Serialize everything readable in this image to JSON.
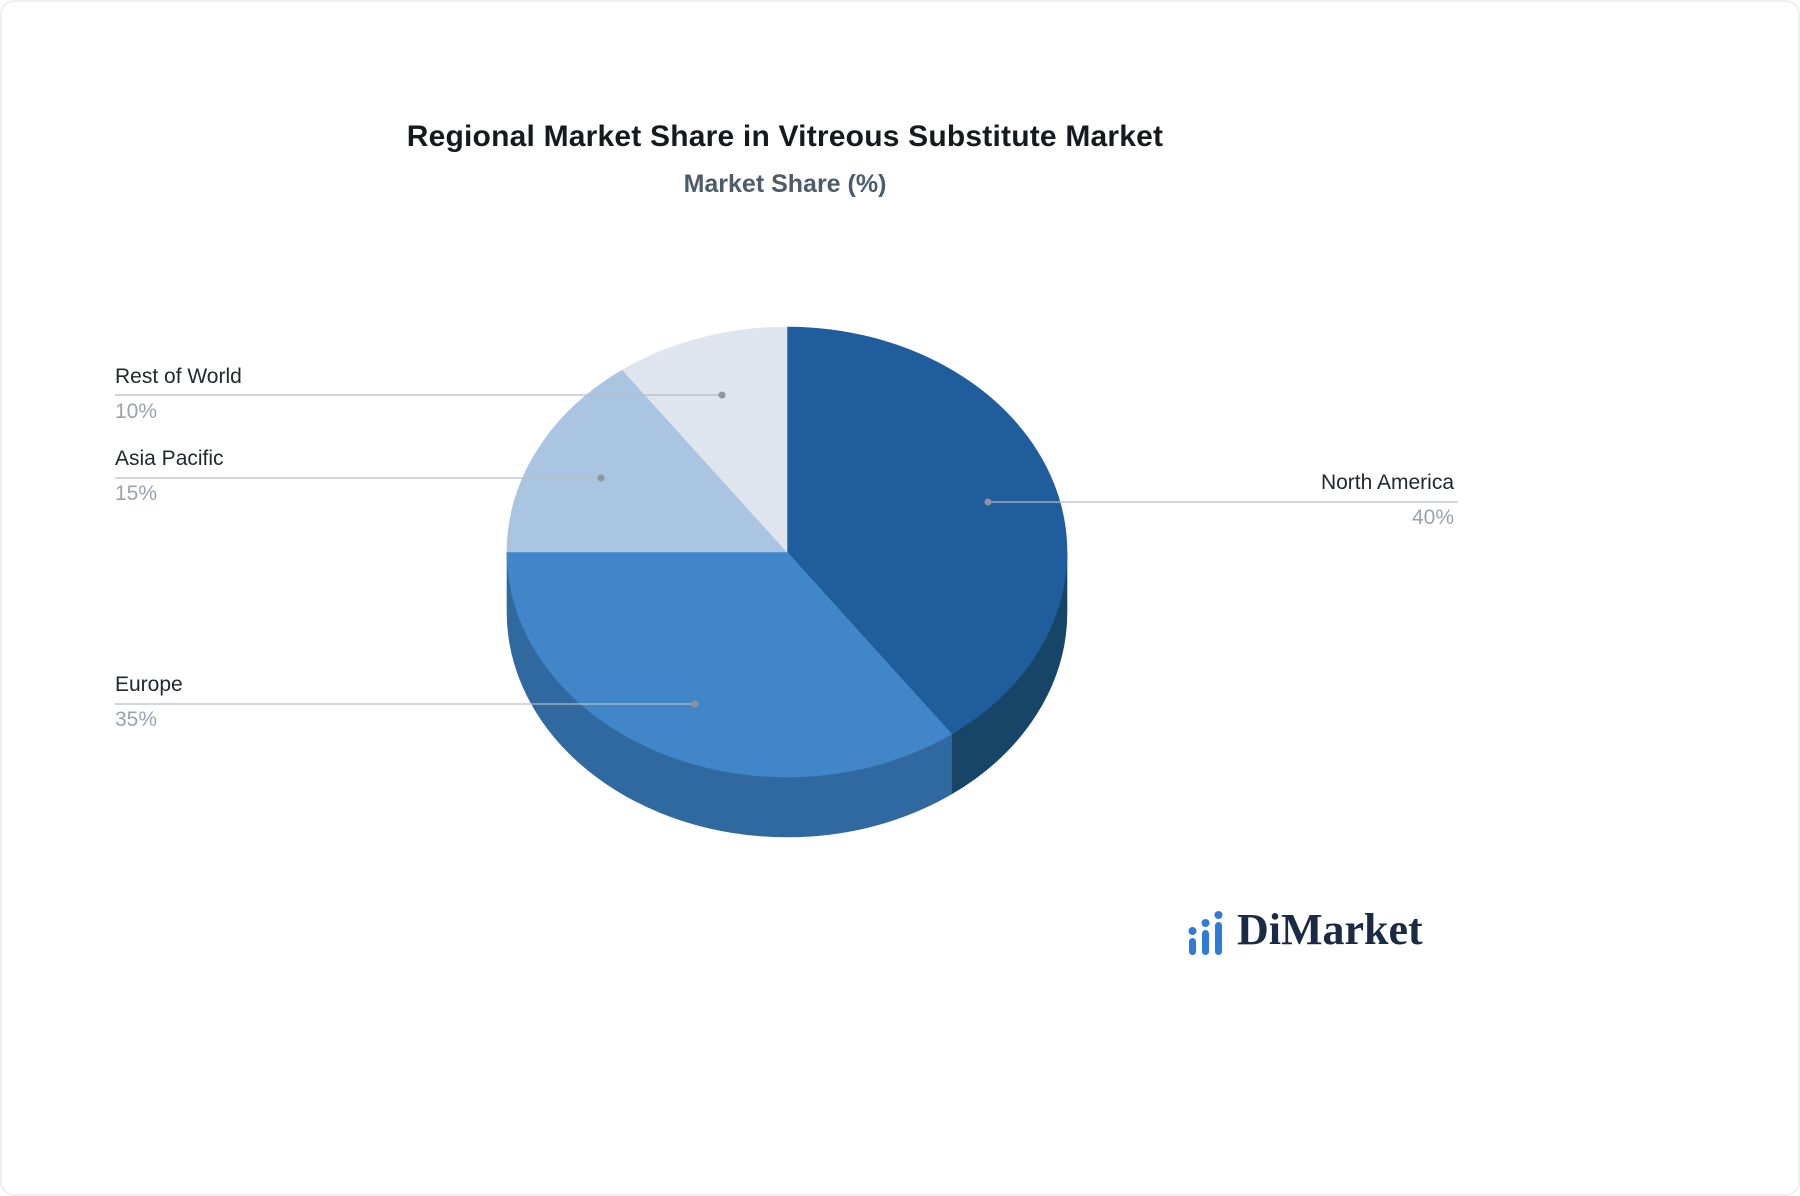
{
  "title": "Regional Market Share in Vitreous Substitute Market",
  "subtitle": "Market Share (%)",
  "chart_data": {
    "type": "pie",
    "style": "3d",
    "title": "Regional Market Share in Vitreous Substitute Market",
    "subtitle": "Market Share (%)",
    "labels": [
      "North America",
      "Europe",
      "Asia Pacific",
      "Rest of World"
    ],
    "values": [
      40,
      35,
      15,
      10
    ],
    "unit": "%",
    "direction": "clockwise",
    "start_angle_deg": 0,
    "legend_position": "callout-labels",
    "segments": [
      {
        "label": "North America",
        "value": 40,
        "pct_label": "40%",
        "color": "#1F5D9C",
        "side_color": "#164568"
      },
      {
        "label": "Europe",
        "value": 35,
        "pct_label": "35%",
        "color": "#4086C9",
        "side_color": "#30699F"
      },
      {
        "label": "Asia Pacific",
        "value": 15,
        "pct_label": "15%",
        "color": "#A9C5E1",
        "side_color": "#7FA0C0"
      },
      {
        "label": "Rest of World",
        "value": 10,
        "pct_label": "10%",
        "color": "#DEE5EE",
        "side_color": "#B4C2D2"
      }
    ]
  },
  "branding": {
    "logo_text": "DiMarket",
    "logo_icon": "bar-chart-icon",
    "text_color": "#1b2b45",
    "icon_color": "#2E7CD6"
  },
  "colors": {
    "title": "#16191d",
    "subtitle": "#4e5b6b",
    "label_text": "#23282e",
    "pct_text": "#9aa3ad",
    "callout_line": "#b6bcc2",
    "callout_dot": "#8e959c",
    "background": "#ffffff"
  }
}
